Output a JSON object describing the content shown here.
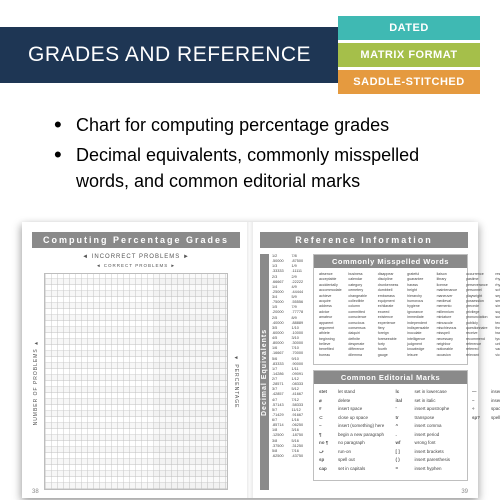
{
  "header": {
    "title": "GRADES AND REFERENCE",
    "bg_color": "#1e3654",
    "text_color": "#ffffff"
  },
  "tags": [
    {
      "label": "DATED",
      "bg": "#3fb9b3"
    },
    {
      "label": "MATRIX FORMAT",
      "bg": "#a5bf4a"
    },
    {
      "label": "SADDLE-STITCHED",
      "bg": "#e59a3f"
    }
  ],
  "bullets": [
    "Chart for computing percentage grades",
    "Decimal equivalents, commonly misspelled words, and common editorial marks"
  ],
  "left_page": {
    "title": "Computing Percentage Grades",
    "sub_top": "◄ INCORRECT PROBLEMS ►",
    "sub_top2": "◄ CORRECT PROBLEMS ►",
    "y_label": "NUMBER OF PROBLEMS ►",
    "y_label_right": "◄ PERCENTAGE",
    "page_num": "38"
  },
  "right_page": {
    "title": "Reference Information",
    "page_num": "39",
    "decimal_label": "Decimal Equivalents",
    "decimals": [
      "1/2 .50000",
      "1/3 .33333",
      "2/3 .66667",
      "1/4 .25000",
      "3/4 .75000",
      "1/5 .20000",
      "2/5 .40000",
      "3/5 .60000",
      "4/5 .80000",
      "1/6 .16667",
      "5/6 .83333",
      "1/7 .14286",
      "2/7 .28571",
      "3/7 .42857",
      "4/7 .57143",
      "5/7 .71429",
      "6/7 .85714",
      "1/8 .12500",
      "3/8 .37500",
      "5/8 .62500",
      "7/8 .87500",
      "1/9 .11111",
      "2/9 .22222",
      "4/9 .44444",
      "5/9 .55556",
      "7/9 .77778",
      "8/9 .88889",
      "1/10 .10000",
      "3/10 .30000",
      "7/10 .70000",
      "9/10 .90000",
      "1/11 .09091",
      "1/12 .08333",
      "5/12 .41667",
      "7/12 .58333",
      "11/12 .91667",
      "1/16 .06250",
      "3/16 .18750",
      "5/16 .31250",
      "7/16 .43750"
    ],
    "words_title": "Commonly Misspelled Words",
    "words": [
      "absence",
      "acceptable",
      "accidentally",
      "accommodate",
      "achieve",
      "acquire",
      "address",
      "advice",
      "amateur",
      "apparent",
      "argument",
      "athlete",
      "beginning",
      "believe",
      "benefited",
      "bureau",
      "business",
      "calendar",
      "category",
      "cemetery",
      "changeable",
      "collectible",
      "column",
      "committed",
      "conscience",
      "conscious",
      "consensus",
      "daiquiri",
      "definite",
      "desperate",
      "difference",
      "dilemma",
      "disappear",
      "discipline",
      "drunkenness",
      "dumbbell",
      "embarrass",
      "equipment",
      "exhilarate",
      "exceed",
      "existence",
      "experience",
      "fiery",
      "foreign",
      "foreseeable",
      "forty",
      "fourth",
      "gauge",
      "grateful",
      "guarantee",
      "harass",
      "height",
      "hierarchy",
      "humorous",
      "hygiene",
      "ignorance",
      "immediate",
      "independent",
      "indispensable",
      "inoculate",
      "intelligence",
      "judgment",
      "knowledge",
      "leisure",
      "liaison",
      "library",
      "license",
      "maintenance",
      "maneuver",
      "medieval",
      "memento",
      "millennium",
      "miniature",
      "minuscule",
      "mischievous",
      "misspell",
      "necessary",
      "neighbor",
      "noticeable",
      "occasion",
      "occurrence",
      "pastime",
      "perseverance",
      "personnel",
      "playwright",
      "possession",
      "precede",
      "privilege",
      "pronunciation",
      "publicly",
      "questionnaire",
      "receive",
      "recommend",
      "reference",
      "referred",
      "relevant",
      "restaurant",
      "rhyme",
      "rhythm",
      "schedule",
      "separate",
      "sergeant",
      "similar",
      "supersede",
      "surprise",
      "technique",
      "threshold",
      "twelfth",
      "tyranny",
      "until",
      "vacuum",
      "vicious",
      "weather",
      "weird"
    ],
    "marks_title": "Common Editorial Marks",
    "marks": [
      {
        "sym": "stet",
        "desc": "let stand"
      },
      {
        "sym": "⌀",
        "desc": "delete"
      },
      {
        "sym": "#",
        "desc": "insert space"
      },
      {
        "sym": "⊂",
        "desc": "close up space"
      },
      {
        "sym": "~",
        "desc": "insert (something) here"
      },
      {
        "sym": "¶",
        "desc": "begin a new paragraph"
      },
      {
        "sym": "no ¶",
        "desc": "no paragraph"
      },
      {
        "sym": "⤻",
        "desc": "run-on"
      },
      {
        "sym": "sp",
        "desc": "spell out"
      },
      {
        "sym": "cap",
        "desc": "set in capitals"
      },
      {
        "sym": "lc",
        "desc": "set in lowercase"
      },
      {
        "sym": "ital",
        "desc": "set in italic"
      },
      {
        "sym": "'",
        "desc": "insert apostrophe"
      },
      {
        "sym": "tr",
        "desc": "transpose"
      },
      {
        "sym": "^",
        "desc": "insert comma"
      },
      {
        "sym": ".",
        "desc": "insert period"
      },
      {
        "sym": "wf",
        "desc": "wrong font"
      },
      {
        "sym": "[ ]",
        "desc": "insert brackets"
      },
      {
        "sym": "( )",
        "desc": "insert parenthesis"
      },
      {
        "sym": "=",
        "desc": "insert hyphen"
      },
      {
        "sym": "—",
        "desc": "insert em dash"
      },
      {
        "sym": "–",
        "desc": "insert en dash"
      },
      {
        "sym": "÷",
        "desc": "space evenly"
      },
      {
        "sym": "sp?",
        "desc": "spelling"
      }
    ]
  }
}
